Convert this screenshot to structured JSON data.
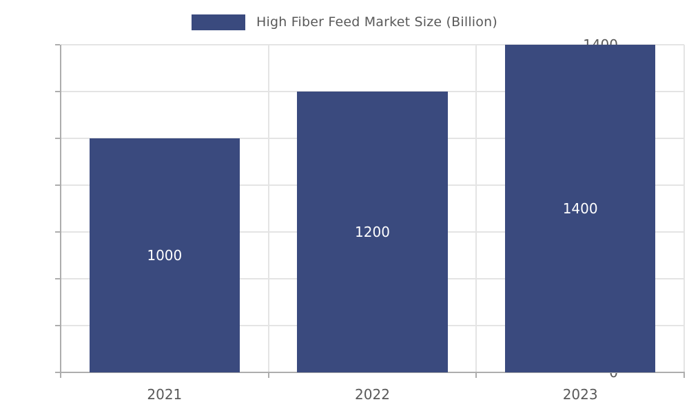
{
  "legend": {
    "label": "High Fiber Feed Market Size (Billion)"
  },
  "chart_data": {
    "type": "bar",
    "title": "High Fiber Feed Market Size (Billion)",
    "categories": [
      "2021",
      "2022",
      "2023"
    ],
    "values": [
      1000,
      1200,
      1400
    ],
    "bar_labels": [
      "1000",
      "1200",
      "1400"
    ],
    "xlabel": "",
    "ylabel": "",
    "ylim": [
      0,
      1400
    ],
    "y_ticks": [
      0,
      200,
      400,
      600,
      800,
      1000,
      1200,
      1400
    ],
    "grid": true,
    "legend_position": "top-center",
    "colors": {
      "bar": "#3A4A7E",
      "grid": "#E4E4E4",
      "axis": "#ADADAD",
      "tick_text": "#595959",
      "bar_label_text": "#FFFFFF"
    }
  }
}
